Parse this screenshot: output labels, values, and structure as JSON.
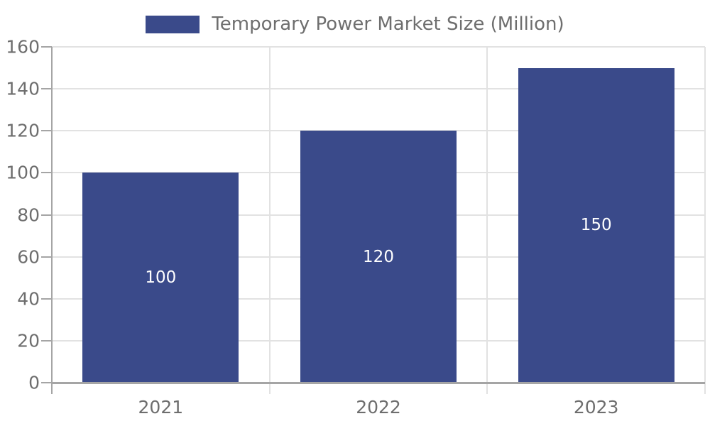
{
  "legend": {
    "label": "Temporary Power Market Size (Million)",
    "swatch_color": "#3A4A8A"
  },
  "chart_data": {
    "type": "bar",
    "title": "Temporary Power Market Size (Million)",
    "categories": [
      "2021",
      "2022",
      "2023"
    ],
    "values": [
      100,
      120,
      150
    ],
    "data_labels": [
      "100",
      "120",
      "150"
    ],
    "series": [
      {
        "name": "Temporary Power Market Size (Million)",
        "values": [
          100,
          120,
          150
        ]
      }
    ],
    "xlabel": "",
    "ylabel": "",
    "ylim": [
      0,
      160
    ],
    "yticks": [
      0,
      20,
      40,
      60,
      80,
      100,
      120,
      140,
      160
    ],
    "grid": true,
    "legend_position": "top-center",
    "colors": {
      "bar": "#3A4A8A",
      "grid_line": "#e2e2e2",
      "axis_line": "#a5a5a5",
      "tick_text": "#6e6e6e",
      "data_label": "#ffffff",
      "background": "#ffffff"
    }
  }
}
